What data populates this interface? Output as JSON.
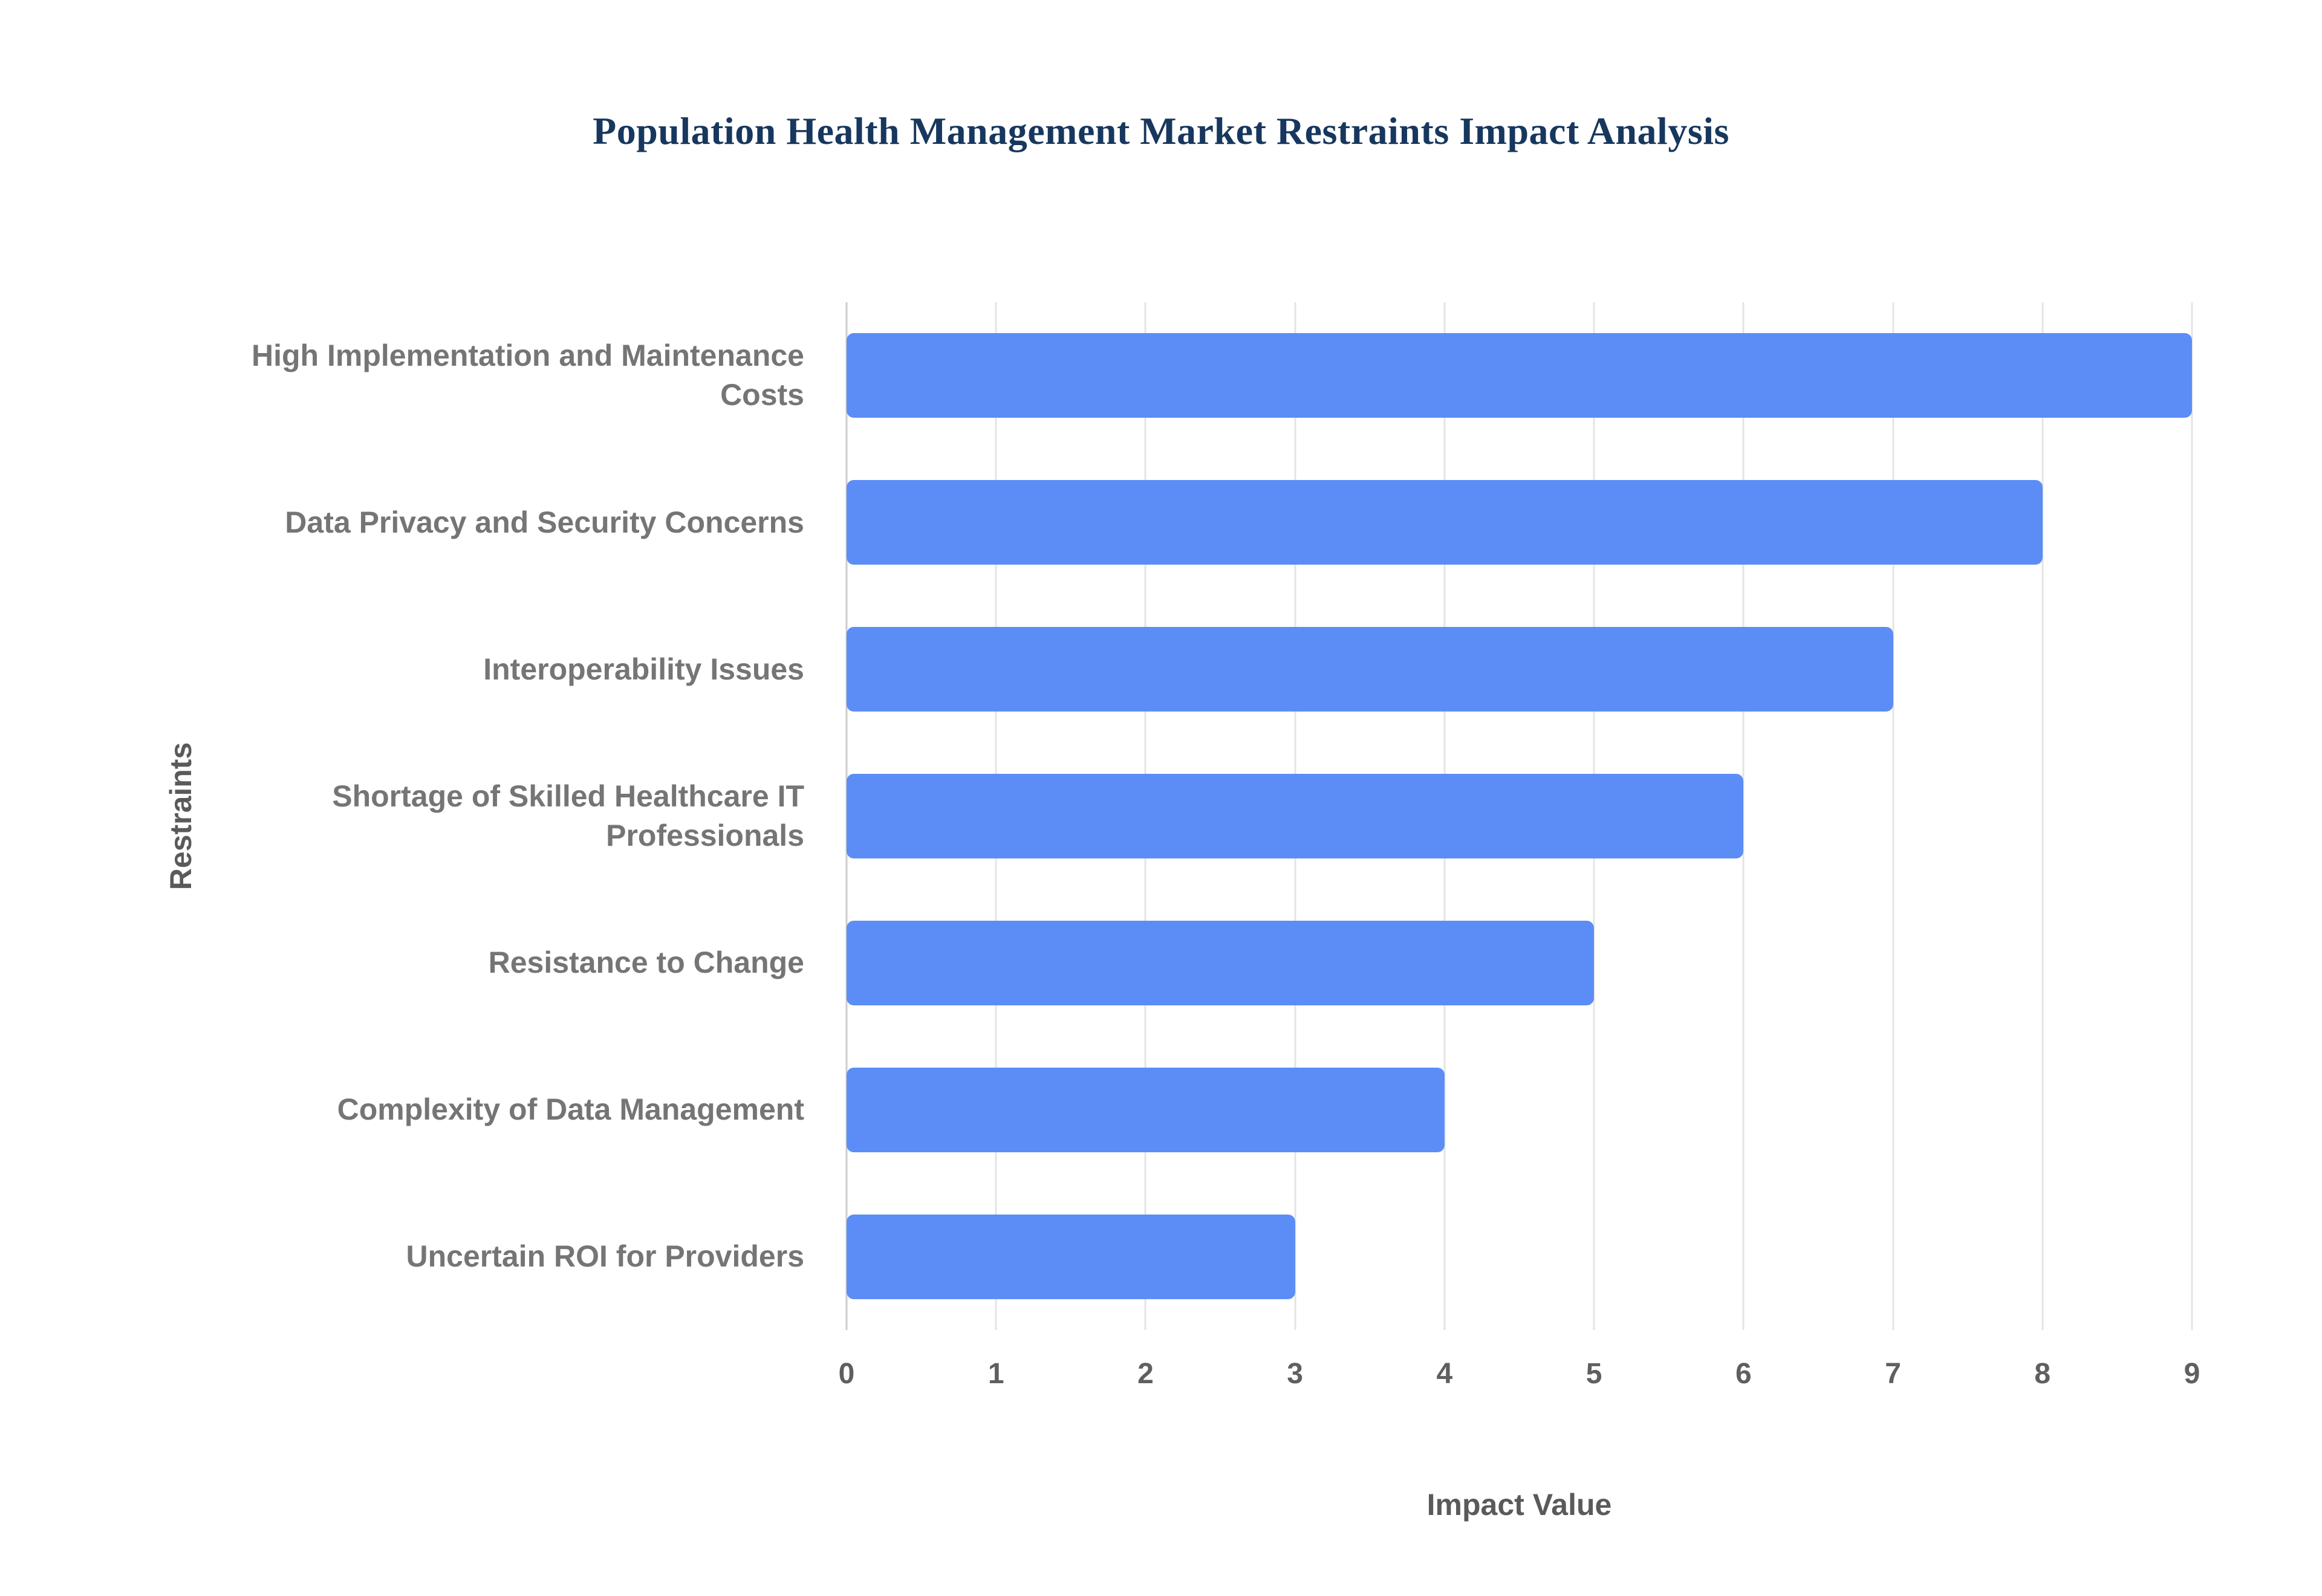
{
  "chart_data": {
    "type": "bar",
    "orientation": "horizontal",
    "title": "Population Health Management Market Restraints Impact Analysis",
    "categories": [
      "High Implementation and Maintenance Costs",
      "Data Privacy and Security Concerns",
      "Interoperability Issues",
      "Shortage of Skilled Healthcare IT Professionals",
      "Resistance to Change",
      "Complexity of Data Management",
      "Uncertain ROI for Providers"
    ],
    "values": [
      9,
      8,
      7,
      6,
      5,
      4,
      3
    ],
    "xlabel": "Impact Value",
    "ylabel": "Restraints",
    "xlim": [
      0,
      9
    ],
    "xticks": [
      0,
      1,
      2,
      3,
      4,
      5,
      6,
      7,
      8,
      9
    ],
    "grid": true,
    "legend": "none",
    "bar_color": "#5C8DF6",
    "title_color": "#17375E",
    "label_color": "#757575",
    "gridline_color": "#e4e4e4"
  }
}
